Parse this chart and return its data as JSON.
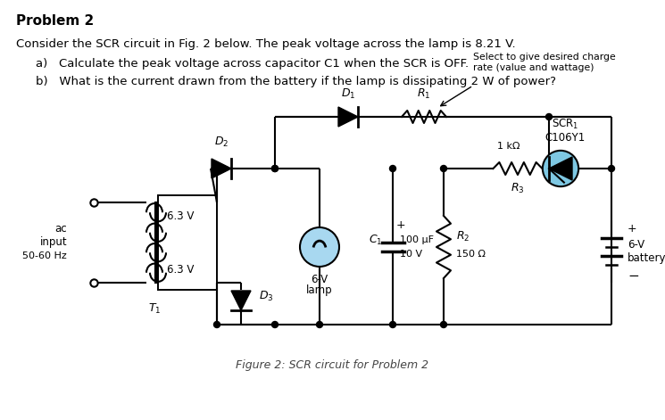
{
  "title": "Problem 2",
  "line1": "Consider the SCR circuit in Fig. 2 below. The peak voltage across the lamp is 8.21 V.",
  "line2a": "a)   Calculate the peak voltage across capacitor C1 when the SCR is OFF.",
  "line2b": "b)   What is the current drawn from the battery if the lamp is dissipating 2 W of power?",
  "fig_caption": "Figure 2: SCR circuit for Problem 2",
  "select_note": "Select to give desired charge\nrate (value and wattage)",
  "bg_color": "#ffffff",
  "lamp_color": "#a8d8f0",
  "scr_color": "#7ec8e3"
}
